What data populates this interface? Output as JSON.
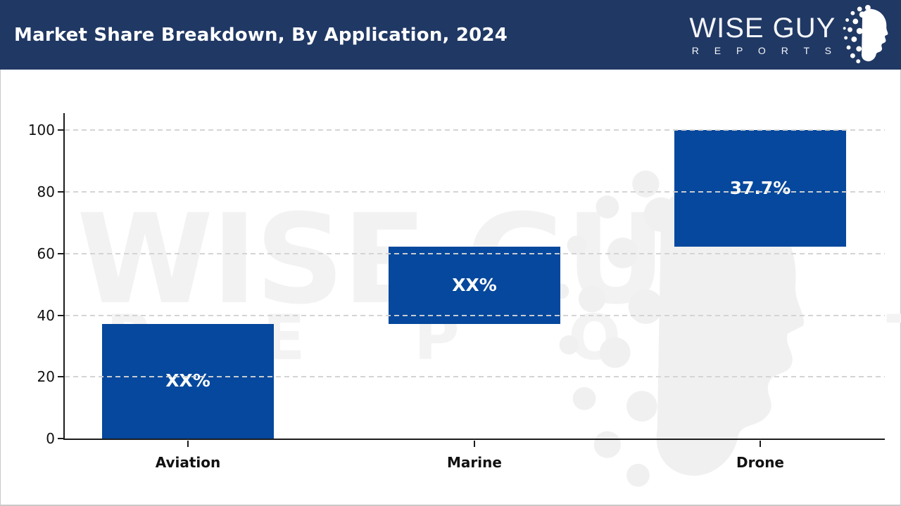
{
  "header": {
    "title": "Market Share Breakdown, By Application, 2024",
    "bg_color": "#203864",
    "logo": {
      "line1": "WISE GUY",
      "line2": "R E P O R T S"
    }
  },
  "watermark": {
    "line1": "WISE GUY",
    "line2": "R E P O R T S"
  },
  "chart_data": {
    "type": "bar",
    "subtype": "waterfall-floating",
    "title": "Market Share Breakdown, By Application, 2024",
    "categories": [
      "Aviation",
      "Marine",
      "Drone"
    ],
    "bars": [
      {
        "category": "Aviation",
        "start": 0,
        "end": 37.2,
        "label": "XX%"
      },
      {
        "category": "Marine",
        "start": 37.2,
        "end": 62.3,
        "label": "XX%"
      },
      {
        "category": "Drone",
        "start": 62.3,
        "end": 100,
        "label": "37.7%"
      }
    ],
    "yticks": [
      0,
      20,
      40,
      60,
      80,
      100
    ],
    "ylim": [
      0,
      106
    ],
    "xlabel": "",
    "ylabel": "",
    "grid": "horizontal-dashed",
    "legend": "none",
    "bar_color": "#05489d",
    "bar_label_color": "#ffffff",
    "axis_color": "#1c1c1c"
  }
}
